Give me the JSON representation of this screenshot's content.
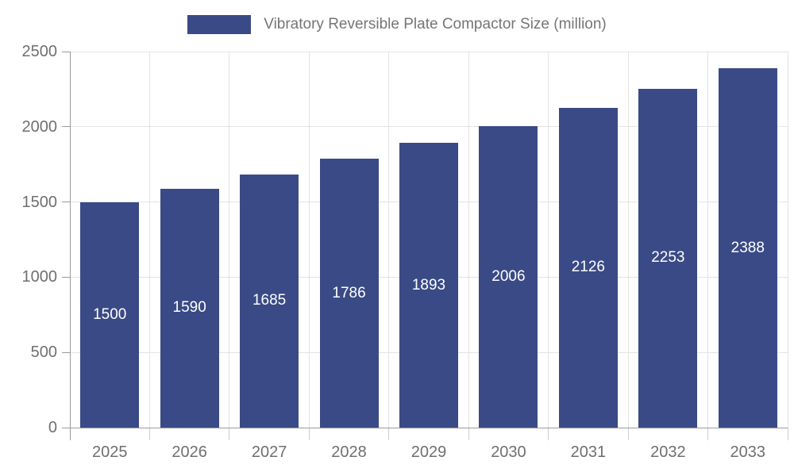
{
  "chart_data": {
    "type": "bar",
    "title": "Vibratory Reversible Plate Compactor Size (million)",
    "categories": [
      "2025",
      "2026",
      "2027",
      "2028",
      "2029",
      "2030",
      "2031",
      "2032",
      "2033"
    ],
    "values": [
      1500,
      1590,
      1685,
      1786,
      1893,
      2006,
      2126,
      2253,
      2388
    ],
    "xlabel": "",
    "ylabel": "",
    "ylim": [
      0,
      2500
    ],
    "yticks": [
      0,
      500,
      1000,
      1500,
      2000,
      2500
    ],
    "grid": true,
    "legend_position": "top-center",
    "value_labels": "inside-bar-centered",
    "colors": {
      "bar": "#3a4a86",
      "bar_label": "#ffffff",
      "grid": "#e3e3e3",
      "axis": "#9a9a9a",
      "tick": "#c9cdd6",
      "text": "#6f6f6f",
      "legend_text": "#757575",
      "background": "#ffffff"
    }
  }
}
